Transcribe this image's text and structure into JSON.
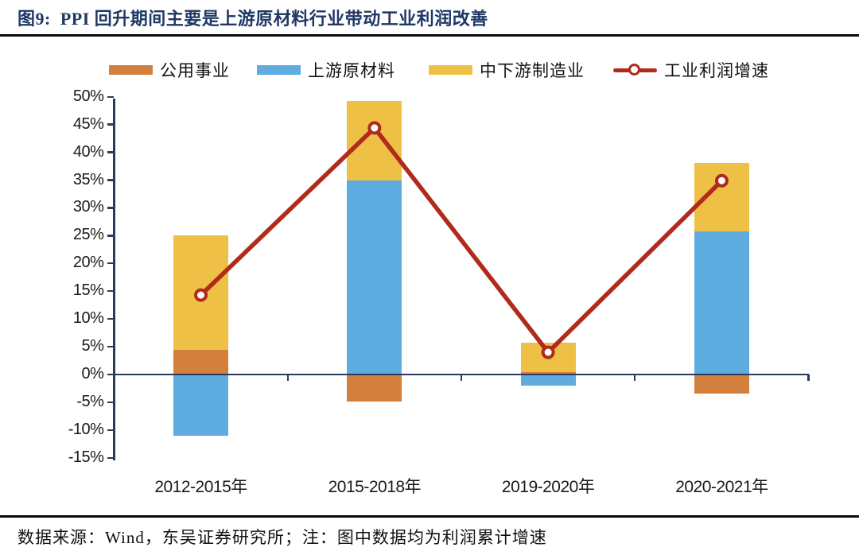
{
  "header": {
    "title": "图9:  PPI 回升期间主要是上游原材料行业带动工业利润改善"
  },
  "footer": {
    "text": "数据来源：Wind，东吴证券研究所；注：图中数据均为利润累计增速"
  },
  "chart_data": {
    "type": "bar",
    "subtype": "stacked-bar-with-line-overlay",
    "title": "图9: PPI 回升期间主要是上游原材料行业带动工业利润改善",
    "categories": [
      "2012-2015年",
      "2015-2018年",
      "2019-2020年",
      "2020-2021年"
    ],
    "series": [
      {
        "name": "公用事业",
        "type": "bar",
        "color": "#D3803F",
        "values": [
          4.5,
          -4.8,
          0.5,
          -3.4
        ]
      },
      {
        "name": "上游原材料",
        "type": "bar",
        "color": "#5FACE1",
        "values": [
          -11.0,
          35.0,
          -2.0,
          25.8
        ]
      },
      {
        "name": "中下游制造业",
        "type": "bar",
        "color": "#EEC045",
        "values": [
          20.6,
          14.2,
          5.2,
          12.3
        ]
      },
      {
        "name": "工业利润增速",
        "type": "line",
        "color": "#B02B1B",
        "values": [
          14.3,
          44.4,
          4.0,
          34.9
        ]
      }
    ],
    "bar_stack_totals": [
      25.1,
      49.2,
      5.7,
      38.1
    ],
    "ylim": [
      -15,
      50
    ],
    "ytick_step": 5,
    "ytick_labels": [
      "50%",
      "45%",
      "40%",
      "35%",
      "30%",
      "25%",
      "20%",
      "15%",
      "10%",
      "5%",
      "0%",
      "-5%",
      "-10%",
      "-15%"
    ],
    "ylabel": "",
    "xlabel": "",
    "grid": false,
    "legend_position": "top",
    "axis_color": "#2A3A5E",
    "line_marker": "open-circle"
  }
}
